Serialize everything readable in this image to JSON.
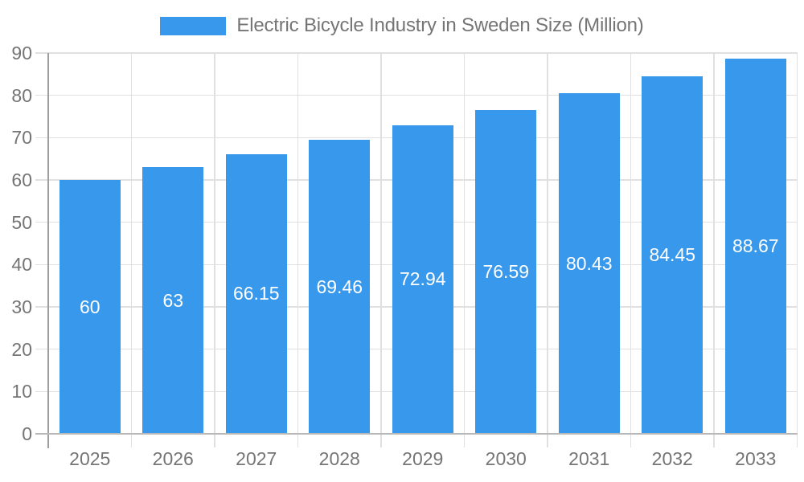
{
  "chart_data": {
    "type": "bar",
    "title": "Electric Bicycle Industry in Sweden Size (Million)",
    "legend": {
      "label": "Electric Bicycle Industry in Sweden Size (Million)",
      "position": "top-center"
    },
    "categories": [
      "2025",
      "2026",
      "2027",
      "2028",
      "2029",
      "2030",
      "2031",
      "2032",
      "2033"
    ],
    "series": [
      {
        "name": "Electric Bicycle Industry in Sweden Size (Million)",
        "values": [
          60,
          63,
          66.15,
          69.46,
          72.94,
          76.59,
          80.43,
          84.45,
          88.67
        ],
        "value_labels": [
          "60",
          "63",
          "66.15",
          "69.46",
          "72.94",
          "76.59",
          "80.43",
          "84.45",
          "88.67"
        ]
      }
    ],
    "xlabel": "",
    "ylabel": "",
    "ylim": [
      0,
      90
    ],
    "ytick_step": 10,
    "ytick_labels": [
      "0",
      "10",
      "20",
      "30",
      "40",
      "50",
      "60",
      "70",
      "80",
      "90"
    ],
    "grid": true,
    "value_label_position": "center-of-bar",
    "colors": {
      "bar": "#3898ec",
      "grid": "#e0e0e0",
      "axis_x": "#b8b8b8",
      "axis_y": "#9e9e9e",
      "text": "#757575",
      "bar_label": "#ffffff",
      "background": "#ffffff"
    }
  }
}
